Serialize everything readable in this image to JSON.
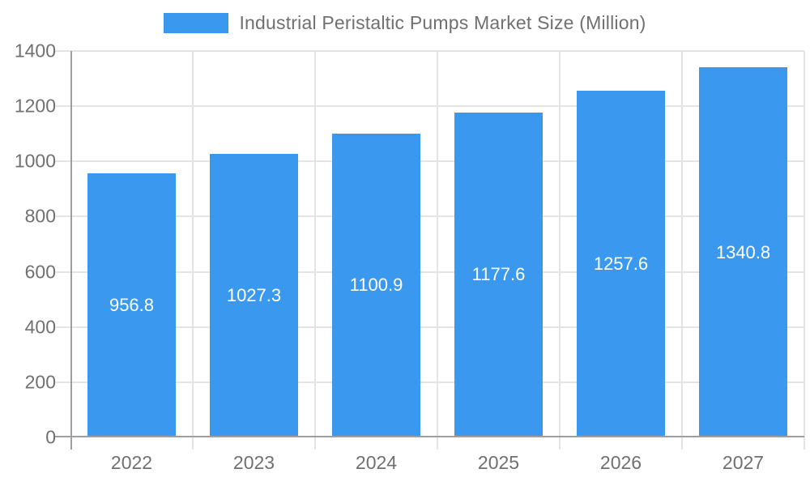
{
  "chart_data": {
    "type": "bar",
    "title": "Industrial Peristaltic Pumps Market Size (Million)",
    "categories": [
      "2022",
      "2023",
      "2024",
      "2025",
      "2026",
      "2027"
    ],
    "values": [
      956.8,
      1027.3,
      1100.9,
      1177.6,
      1257.6,
      1340.8
    ],
    "value_labels": [
      "956.8",
      "1027.3",
      "1100.9",
      "1177.6",
      "1257.6",
      "1340.8"
    ],
    "xlabel": "",
    "ylabel": "",
    "ylim": [
      0,
      1400
    ],
    "yticks": [
      0,
      200,
      400,
      600,
      800,
      1000,
      1200,
      1400
    ],
    "grid": true,
    "legend_position": "top",
    "legend_entries": [
      "Industrial Peristaltic Pumps Market Size (Million)"
    ]
  },
  "colors": {
    "bar": "#3a99ee",
    "bar_label": "#ffffff",
    "axis_line": "#9e9e9e",
    "grid_line": "#e4e4e4",
    "axis_text": "#707070",
    "legend_text": "#707070",
    "background": "#ffffff"
  }
}
